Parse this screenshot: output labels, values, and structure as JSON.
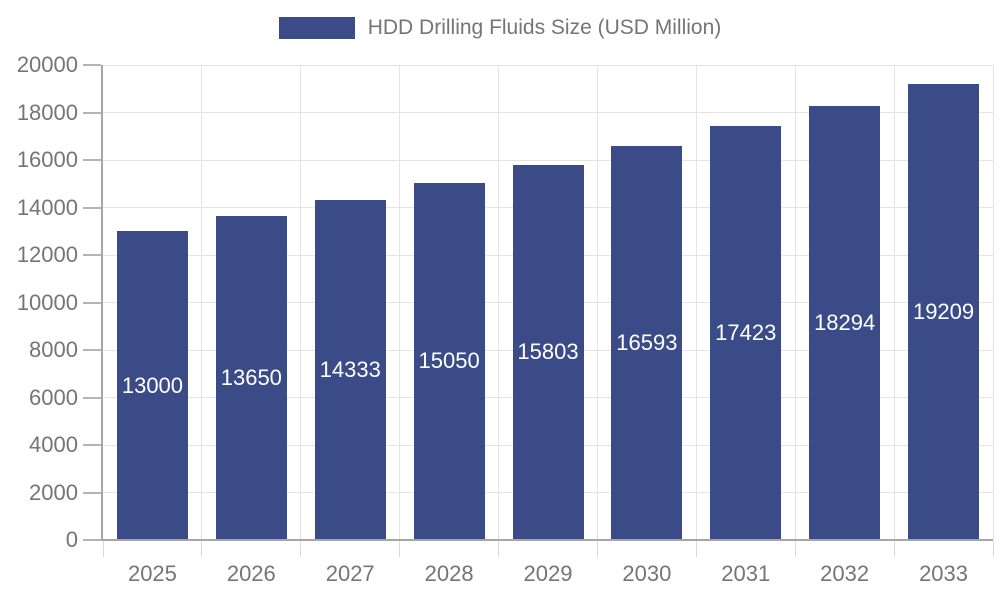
{
  "legend": {
    "label": "HDD Drilling Fluids Size (USD Million)"
  },
  "chart_data": {
    "type": "bar",
    "title": "HDD Drilling Fluids Size (USD Million)",
    "legend_position": "top",
    "categories": [
      "2025",
      "2026",
      "2027",
      "2028",
      "2029",
      "2030",
      "2031",
      "2032",
      "2033"
    ],
    "series": [
      {
        "name": "HDD Drilling Fluids Size (USD Million)",
        "values": [
          13000,
          13650,
          14333,
          15050,
          15803,
          16593,
          17423,
          18294,
          19209
        ]
      }
    ],
    "value_labels": [
      "13000",
      "13650",
      "14333",
      "15050",
      "15803",
      "16593",
      "17423",
      "18294",
      "19209"
    ],
    "xlabel": "",
    "ylabel": "",
    "ylim": [
      0,
      20000
    ],
    "y_ticks": [
      0,
      2000,
      4000,
      6000,
      8000,
      10000,
      12000,
      14000,
      16000,
      18000,
      20000
    ],
    "grid": true,
    "colors": {
      "bar": "#3B4B87",
      "value_label": "#ffffff",
      "axis_text": "#757575",
      "gridline": "#e4e4e4",
      "axis_line": "#a6a6a6",
      "background": "#ffffff"
    }
  }
}
